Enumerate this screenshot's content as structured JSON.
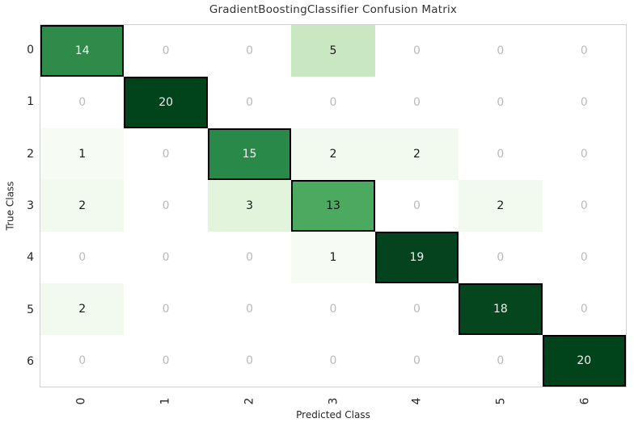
{
  "title": "GradientBoostingClassifier Confusion Matrix",
  "chart_data": {
    "type": "heatmap",
    "title": "GradientBoostingClassifier Confusion Matrix",
    "xlabel": "Predicted Class",
    "ylabel": "True Class",
    "x_tick_labels": [
      "0",
      "1",
      "2",
      "3",
      "4",
      "5",
      "6"
    ],
    "y_tick_labels": [
      "0",
      "1",
      "2",
      "3",
      "4",
      "5",
      "6"
    ],
    "matrix": [
      [
        14,
        0,
        0,
        5,
        0,
        0,
        0
      ],
      [
        0,
        20,
        0,
        0,
        0,
        0,
        0
      ],
      [
        1,
        0,
        15,
        2,
        2,
        0,
        0
      ],
      [
        2,
        0,
        3,
        13,
        0,
        2,
        0
      ],
      [
        0,
        0,
        0,
        1,
        19,
        0,
        0
      ],
      [
        2,
        0,
        0,
        0,
        0,
        18,
        0
      ],
      [
        0,
        0,
        0,
        0,
        0,
        0,
        20
      ]
    ],
    "colormap": "Greens",
    "value_styles": {
      "0": {
        "bg": "#ffffff",
        "fg": "#b9bcb6"
      },
      "1": {
        "bg": "#f6fbf3",
        "fg": "#1a1a1a"
      },
      "2": {
        "bg": "#f2f9ef",
        "fg": "#1a1a1a"
      },
      "3": {
        "bg": "#e3f4dd",
        "fg": "#1a1a1a"
      },
      "5": {
        "bg": "#c9e8c2",
        "fg": "#1a1a1a"
      },
      "13": {
        "bg": "#4caa60",
        "fg": "#111111"
      },
      "14": {
        "bg": "#2e8b4a",
        "fg": "#f7f7f7"
      },
      "15": {
        "bg": "#288948",
        "fg": "#f7f7f7"
      },
      "18": {
        "bg": "#06461f",
        "fg": "#f0f0f0"
      },
      "19": {
        "bg": "#05431e",
        "fg": "#f0f0f0"
      },
      "20": {
        "bg": "#01441c",
        "fg": "#f0f0f0"
      }
    },
    "diagonal_border_color": "#000000",
    "grid": false,
    "legend": false
  },
  "colors": {
    "spine": "#cfd0d2",
    "tick_label": "#262626",
    "title": "#333333",
    "background": "#ffffff"
  }
}
